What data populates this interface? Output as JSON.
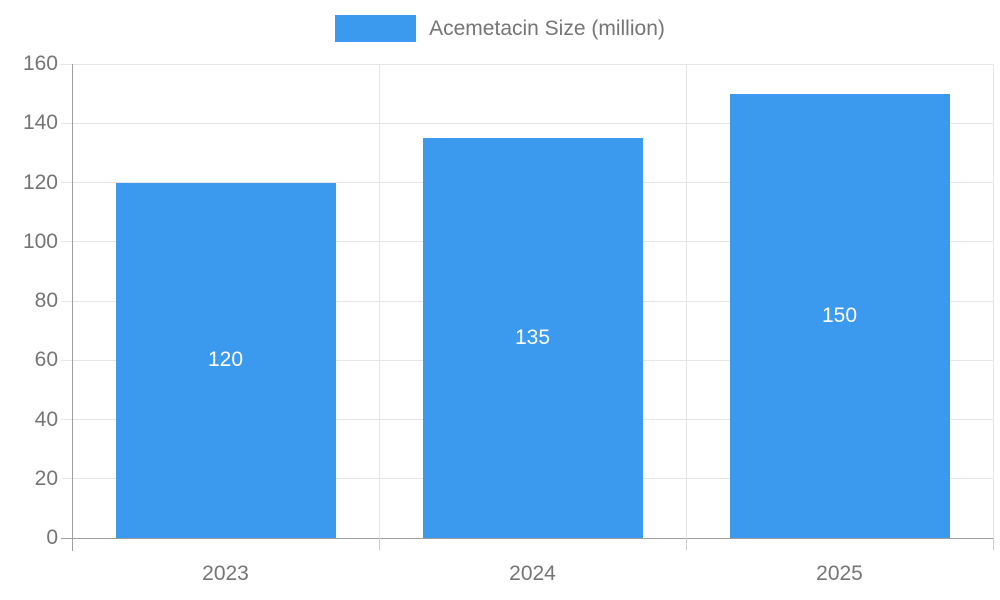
{
  "legend": {
    "label": "Acemetacin Size (million)"
  },
  "colors": {
    "bar": "#3B99EE",
    "text": "#757575",
    "grid": "#e6e6e6",
    "axis": "#9e9e9e",
    "tick": "#cccccc",
    "bar_label": "#ffffff"
  },
  "chart_data": {
    "type": "bar",
    "title": "Acemetacin Size (million)",
    "series_name": "Acemetacin Size (million)",
    "categories": [
      "2023",
      "2024",
      "2025"
    ],
    "values": [
      120,
      135,
      150
    ],
    "data_labels": [
      "120",
      "135",
      "150"
    ],
    "xlabel": "",
    "ylabel": "",
    "ylim": [
      0,
      160
    ],
    "ytick_step": 20,
    "ytick_labels": [
      "0",
      "20",
      "40",
      "60",
      "80",
      "100",
      "120",
      "140",
      "160"
    ],
    "grid": true,
    "legend_position": "top"
  }
}
